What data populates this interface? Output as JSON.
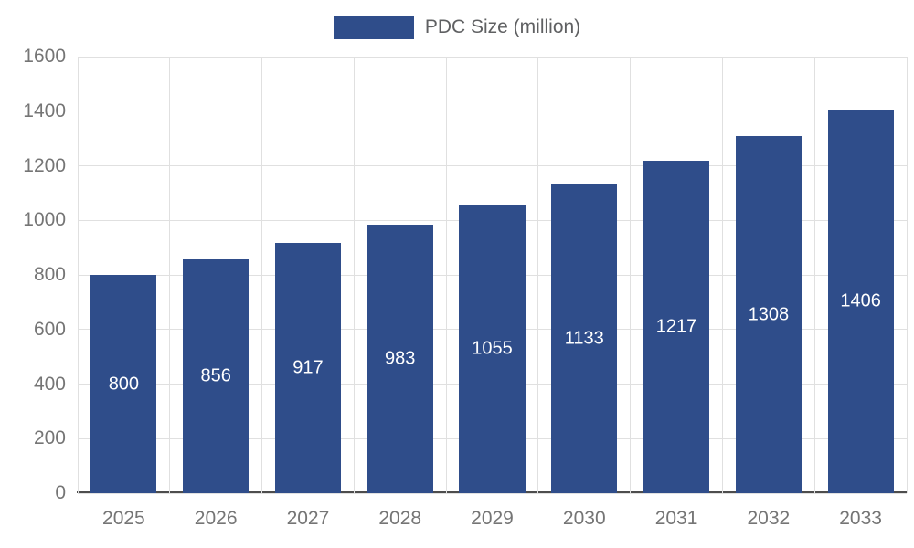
{
  "chart_data": {
    "type": "bar",
    "title": "",
    "legend": "PDC Size (million)",
    "categories": [
      "2025",
      "2026",
      "2027",
      "2028",
      "2029",
      "2030",
      "2031",
      "2032",
      "2033"
    ],
    "series": [
      {
        "name": "PDC Size (million)",
        "values": [
          800,
          856,
          917,
          983,
          1055,
          1133,
          1217,
          1308,
          1406
        ]
      }
    ],
    "xlabel": "",
    "ylabel": "",
    "ylim": [
      0,
      1600
    ],
    "ytick_step": 200,
    "grid": true,
    "legend_position": "top",
    "bar_color": "#2f4d8a",
    "value_label_color": "#ffffff",
    "axis_label_color": "#757575",
    "gridline_color": "#e0e0e0"
  }
}
